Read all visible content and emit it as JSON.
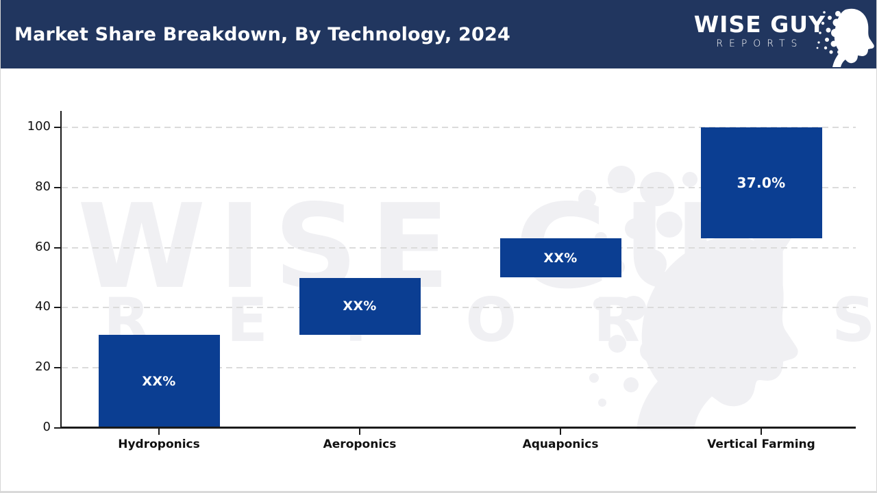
{
  "header": {
    "title": "Market Share Breakdown, By Technology, 2024",
    "bg_color": "#21365f",
    "logo": {
      "line1": "WISE GUY",
      "line2": "REPORTS"
    }
  },
  "watermark": {
    "line1": "WISE GUY",
    "line2": "REPORTS"
  },
  "chart_data": {
    "type": "bar",
    "subtype": "waterfall",
    "title": "Market Share Breakdown, By Technology, 2024",
    "categories": [
      "Hydroponics",
      "Aeroponics",
      "Aquaponics",
      "Vertical Farming"
    ],
    "series": [
      {
        "name": "Market share steps",
        "segments": [
          {
            "category": "Hydroponics",
            "start": 0,
            "end": 31,
            "label": "XX%"
          },
          {
            "category": "Aeroponics",
            "start": 31,
            "end": 50,
            "label": "XX%"
          },
          {
            "category": "Aquaponics",
            "start": 50,
            "end": 63,
            "label": "XX%"
          },
          {
            "category": "Vertical Farming",
            "start": 63,
            "end": 100,
            "label": "37.0%"
          }
        ]
      }
    ],
    "xlabel": "",
    "ylabel": "",
    "yticks": [
      0,
      20,
      40,
      60,
      80,
      100
    ],
    "ylim": [
      0,
      105
    ],
    "grid": "horizontal-dashed",
    "legend": "none",
    "bar_color": "#0b3e92",
    "label_color": "#ffffff",
    "axis_color": "#1a1a1a",
    "gridline_color": "#dbdbdb"
  }
}
